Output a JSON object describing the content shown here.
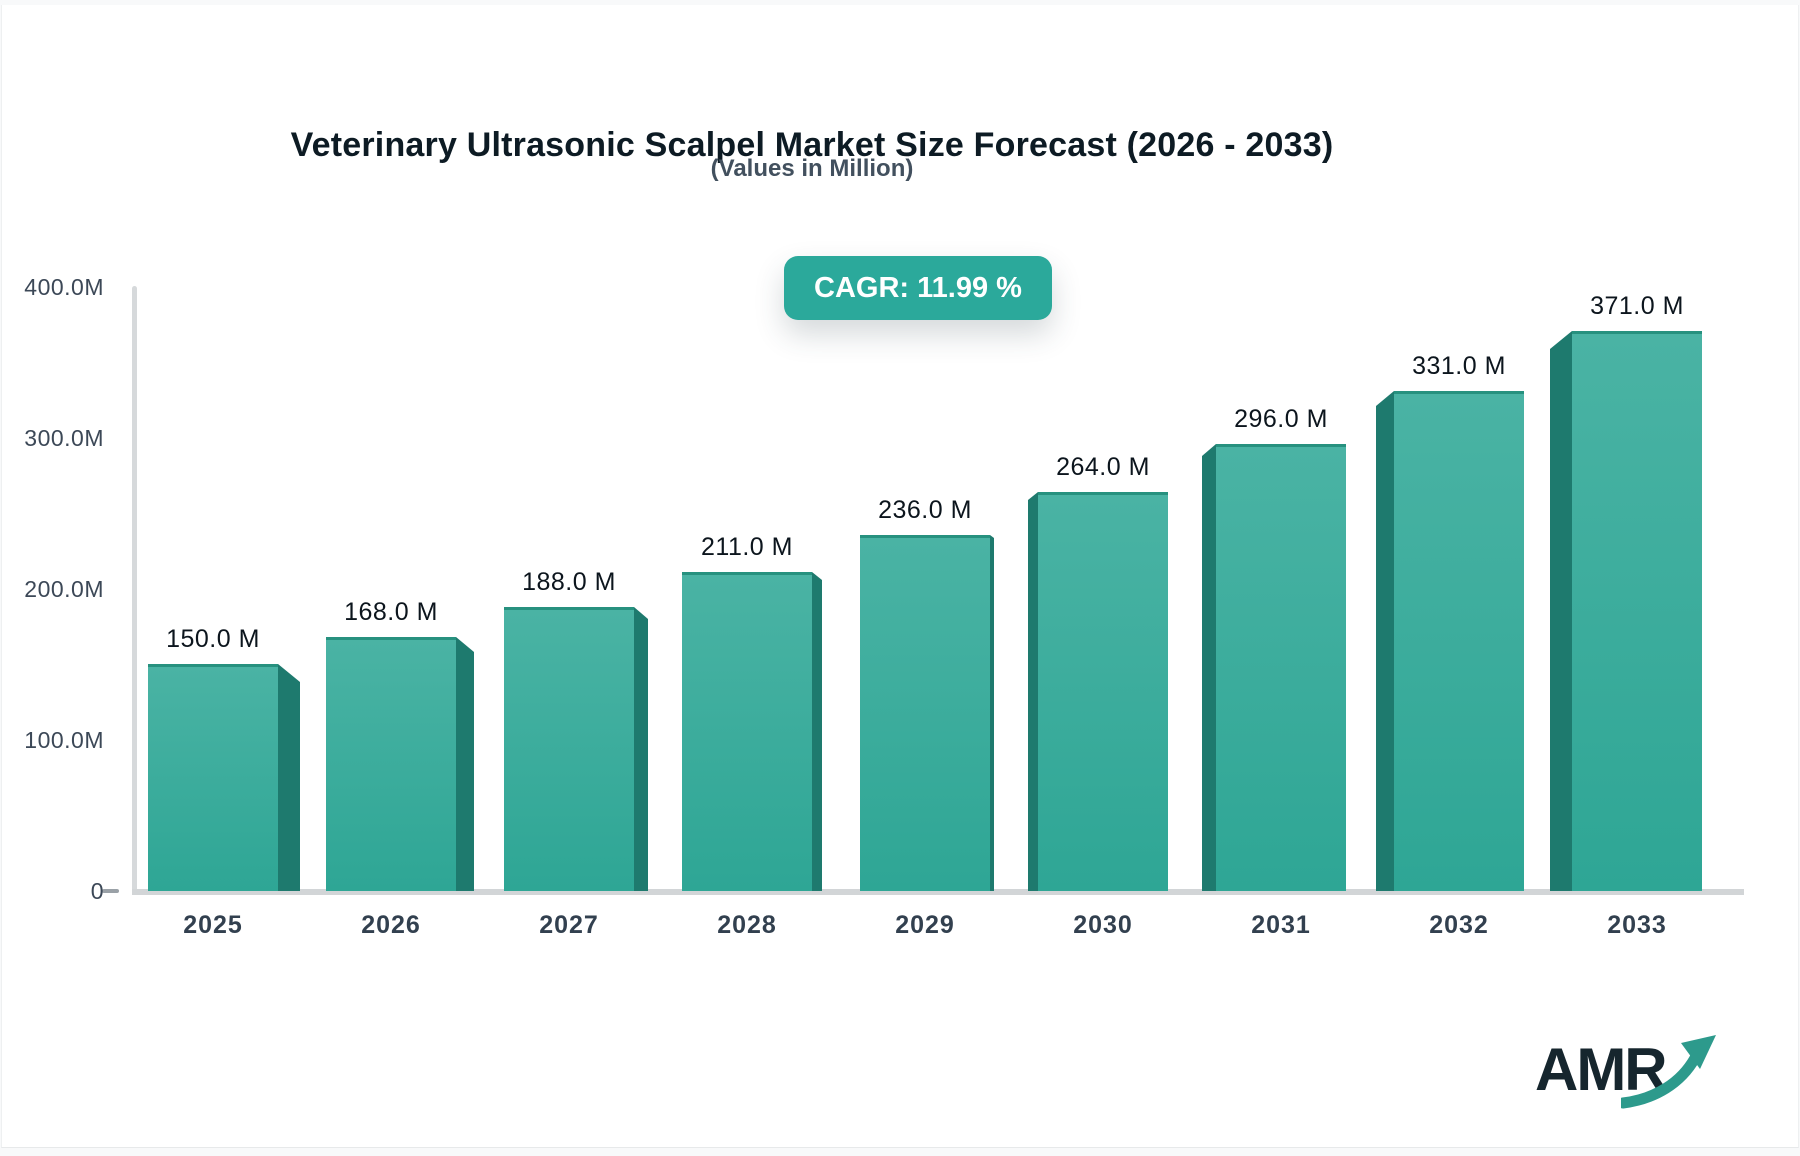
{
  "header": {
    "title": "Veterinary Ultrasonic Scalpel Market Size Forecast (2026 - 2033)",
    "subtitle": "(Values in Million)",
    "cagr_label": "CAGR: 11.99 %"
  },
  "logo": {
    "text": "AMR",
    "arrow_icon": "growth-arrow-icon"
  },
  "colors": {
    "bar_face_top": "#4ab3a4",
    "bar_face_bottom": "#2ea695",
    "bar_face_edge": "#27917f",
    "bar_side": "#1e7a6e",
    "badge_bg": "#2ba99b",
    "badge_text": "#ffffff",
    "axis_line": "#d6d9db",
    "baseline": "#d2d5d7",
    "tick_text": "#3c4857",
    "year_text": "#32404f",
    "value_text": "#0c151d",
    "title_text": "#0d1b24",
    "subtitle_text": "#42505e",
    "logo_text": "#16262e",
    "logo_arrow": "#2d9a8c"
  },
  "chart_data": {
    "type": "bar",
    "title": "Veterinary Ultrasonic Scalpel Market Size Forecast (2026 - 2033)",
    "subtitle": "(Values in Million)",
    "value_unit": "Million",
    "cagr_percent": 11.99,
    "categories": [
      "2025",
      "2026",
      "2027",
      "2028",
      "2029",
      "2030",
      "2031",
      "2032",
      "2033"
    ],
    "values": [
      150,
      168,
      188,
      211,
      236,
      264,
      296,
      331,
      371
    ],
    "value_labels": [
      "150.0 M",
      "168.0 M",
      "188.0 M",
      "211.0 M",
      "236.0 M",
      "264.0 M",
      "296.0 M",
      "331.0 M",
      "371.0 M"
    ],
    "xlabel": "",
    "ylabel": "",
    "ylim": [
      0,
      400
    ],
    "yticks": [
      {
        "label": "400.0M",
        "value": 400
      },
      {
        "label": "300.0M",
        "value": 300
      },
      {
        "label": "200.0M",
        "value": 200
      },
      {
        "label": "100.0M",
        "value": 100
      },
      {
        "label": "0",
        "value": 0
      }
    ],
    "grid": false,
    "legend": false,
    "bar_style": "3d-perspective-teal"
  }
}
